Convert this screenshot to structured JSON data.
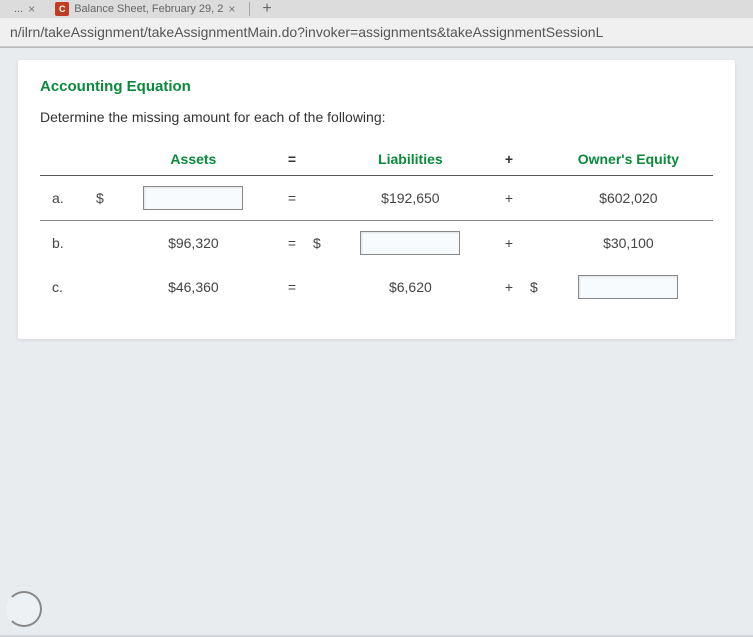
{
  "browser": {
    "tab1_text": "...",
    "tab2_favicon": "C",
    "tab2_text": "Balance Sheet, February 29, 2",
    "url": "n/ilrn/takeAssignment/takeAssignmentMain.do?invoker=assignments&takeAssignmentSessionL"
  },
  "page": {
    "section_title": "Accounting Equation",
    "instruction": "Determine the missing amount for each of the following:"
  },
  "headers": {
    "assets": "Assets",
    "eq": "=",
    "liabilities": "Liabilities",
    "plus": "+",
    "equity": "Owner's Equity"
  },
  "rows": [
    {
      "label": "a.",
      "assets_prefix": "$",
      "assets_input": true,
      "assets_value": "",
      "liabilities_prefix": "",
      "liabilities_input": false,
      "liabilities_value": "$192,650",
      "equity_prefix": "",
      "equity_input": false,
      "equity_value": "$602,020"
    },
    {
      "label": "b.",
      "assets_prefix": "",
      "assets_input": false,
      "assets_value": "$96,320",
      "liabilities_prefix": "$",
      "liabilities_input": true,
      "liabilities_value": "",
      "equity_prefix": "",
      "equity_input": false,
      "equity_value": "$30,100"
    },
    {
      "label": "c.",
      "assets_prefix": "",
      "assets_input": false,
      "assets_value": "$46,360",
      "liabilities_prefix": "",
      "liabilities_input": false,
      "liabilities_value": "$6,620",
      "equity_prefix": "$",
      "equity_input": true,
      "equity_value": ""
    }
  ],
  "colors": {
    "green": "#0a8a3a",
    "page_bg": "#e8ecef",
    "card_bg": "#ffffff",
    "border": "#888888"
  }
}
